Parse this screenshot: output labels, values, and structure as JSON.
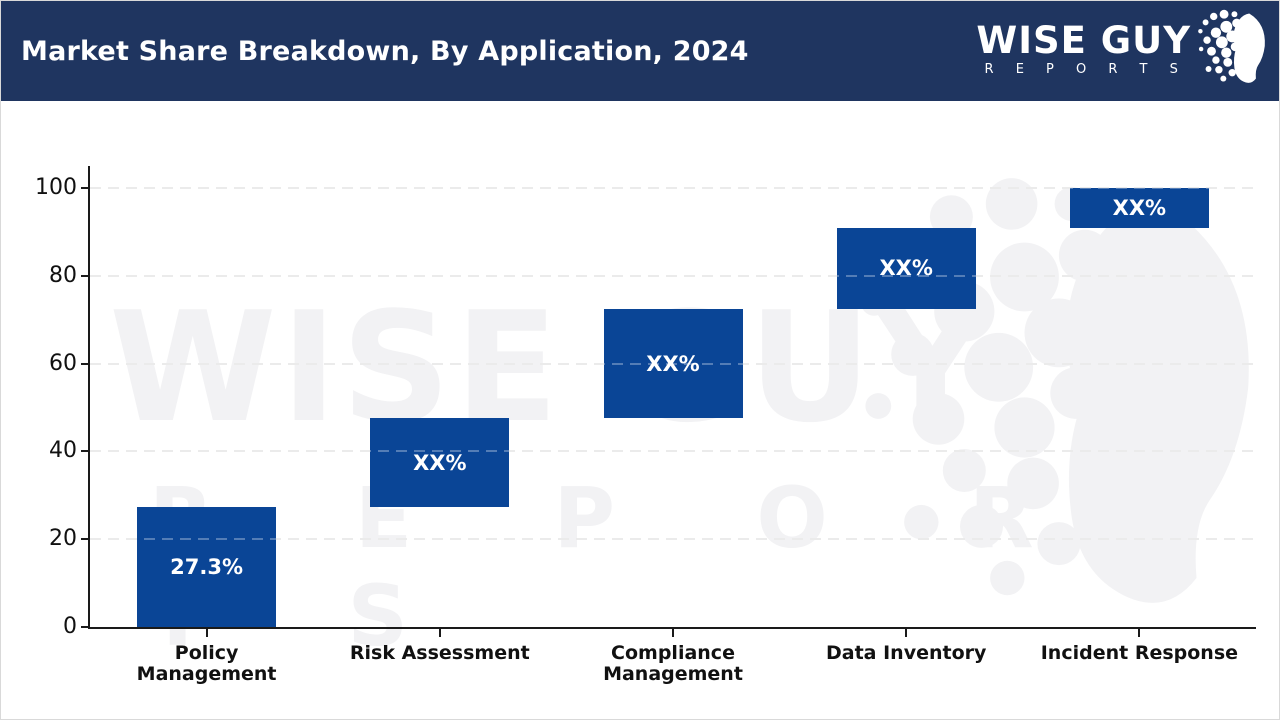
{
  "page": {
    "background": "#ffffff",
    "border_color": "#d9d9d9"
  },
  "header": {
    "title": "Market Share Breakdown, By Application, 2024",
    "background": "#1f3560",
    "logo": {
      "line1": "WISE GUY",
      "line2": "R E P O R T S"
    }
  },
  "watermark": {
    "line1": "WISE GUY",
    "line2": "R E P O R T S"
  },
  "chart_data": {
    "type": "bar",
    "subtype": "waterfall",
    "title": "Market Share Breakdown, By Application, 2024",
    "categories": [
      "Policy Management",
      "Risk Assessment",
      "Compliance Management",
      "Data Inventory",
      "Incident Response"
    ],
    "series": [
      {
        "name": "Market Share",
        "segments": [
          {
            "category": "Policy Management",
            "start": 0,
            "end": 27.3,
            "label": "27.3%"
          },
          {
            "category": "Risk Assessment",
            "start": 27.3,
            "end": 47.5,
            "label": "XX%"
          },
          {
            "category": "Compliance Management",
            "start": 47.5,
            "end": 72.5,
            "label": "XX%"
          },
          {
            "category": "Data Inventory",
            "start": 72.5,
            "end": 90.9,
            "label": "XX%"
          },
          {
            "category": "Incident Response",
            "start": 90.9,
            "end": 100,
            "label": "XX%"
          }
        ]
      }
    ],
    "xlabel": "",
    "ylabel": "",
    "ylim": [
      0,
      100
    ],
    "yticks": [
      0,
      20,
      40,
      60,
      80,
      100
    ],
    "grid": "horizontal-dashed",
    "legend": "none",
    "bar_color": "#0a4596",
    "bar_label_color": "#ffffff",
    "axis_color": "#1a1a1a",
    "grid_color": "#e2e2e2"
  }
}
